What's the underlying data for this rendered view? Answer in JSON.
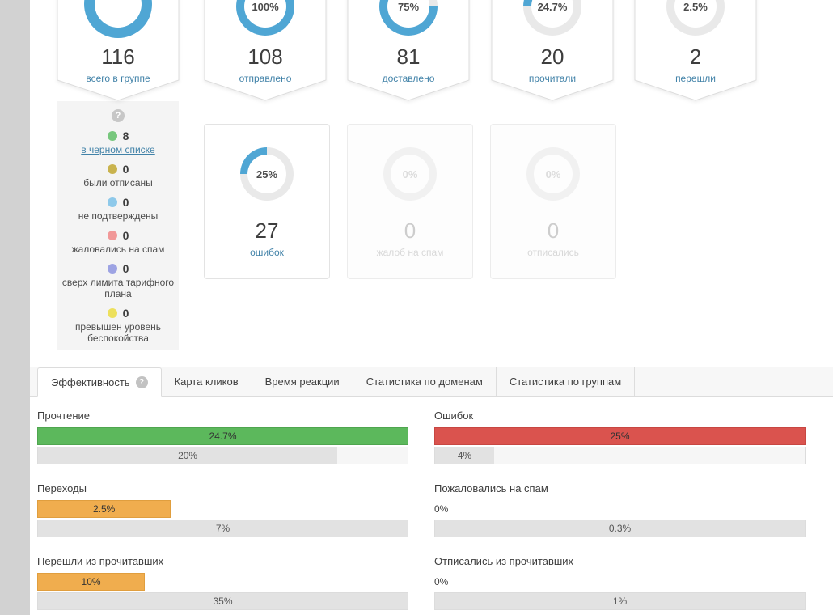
{
  "colors": {
    "accent_blue": "#4fa6d4",
    "link_blue": "#4182a8",
    "bar_green": "#5cb85c",
    "bar_orange": "#f0ad4e",
    "bar_red": "#da534e",
    "sidebar_gray": "#d2d2d2"
  },
  "icons": {
    "help": "?"
  },
  "summary_cards": [
    {
      "percent": "",
      "value": "116",
      "label": "всего в группе",
      "donut_pct": 100
    },
    {
      "percent": "100%",
      "value": "108",
      "label": "отправлено",
      "donut_pct": 100
    },
    {
      "percent": "75%",
      "value": "81",
      "label": "доставлено",
      "donut_pct": 75
    },
    {
      "percent": "24.7%",
      "value": "20",
      "label": "прочитали",
      "donut_pct": 24.7
    },
    {
      "percent": "2.5%",
      "value": "2",
      "label": "перешли",
      "donut_pct": 2.5
    }
  ],
  "blacklist_panel": {
    "items": [
      {
        "dot_color": "#77c77d",
        "value": "8",
        "label": "в черном списке",
        "is_link": true
      },
      {
        "dot_color": "#c9b34e",
        "value": "0",
        "label": "были отписаны"
      },
      {
        "dot_color": "#8ec9ea",
        "value": "0",
        "label": "не подтверждены"
      },
      {
        "dot_color": "#f19898",
        "value": "0",
        "label": "жаловались на спам"
      },
      {
        "dot_color": "#9da3e3",
        "value": "0",
        "label": "сверх лимита тарифного плана"
      },
      {
        "dot_color": "#ede05c",
        "value": "0",
        "label": "превышен уровень беспокойства"
      }
    ]
  },
  "detail_cards": [
    {
      "percent": "25%",
      "value": "27",
      "label": "ошибок",
      "donut_pct": 25,
      "active": true
    },
    {
      "percent": "0%",
      "value": "0",
      "label": "жалоб на спам",
      "donut_pct": 0,
      "active": false
    },
    {
      "percent": "0%",
      "value": "0",
      "label": "отписались",
      "donut_pct": 0,
      "active": false
    }
  ],
  "tabs": [
    {
      "label": "Эффективность",
      "active": true
    },
    {
      "label": "Карта кликов",
      "active": false
    },
    {
      "label": "Время реакции",
      "active": false
    },
    {
      "label": "Статистика по доменам",
      "active": false
    },
    {
      "label": "Статистика по группам",
      "active": false
    }
  ],
  "metrics": {
    "left": [
      {
        "title": "Прочтение",
        "value_label": "24.7%",
        "value_pct": 24.7,
        "value_width": 100,
        "color": "green",
        "avg_label": "20%",
        "avg_pct": 20,
        "avg_width": 81
      },
      {
        "title": "Переходы",
        "value_label": "2.5%",
        "value_pct": 2.5,
        "value_width": 36,
        "color": "orange",
        "avg_label": "7%",
        "avg_pct": 7,
        "avg_width": 100
      },
      {
        "title": "Перешли из прочитавших",
        "value_label": "10%",
        "value_pct": 10,
        "value_width": 29,
        "color": "orange",
        "avg_label": "35%",
        "avg_pct": 35,
        "avg_width": 100
      }
    ],
    "right": [
      {
        "title": "Ошибок",
        "value_label": "25%",
        "value_pct": 25,
        "value_width": 100,
        "color": "red",
        "avg_label": "4%",
        "avg_pct": 4,
        "avg_width": 16
      },
      {
        "title": "Пожаловались на спам",
        "value_label": "0%",
        "value_pct": 0,
        "value_width": 0,
        "color": "none",
        "avg_label": "0.3%",
        "avg_pct": 0.3,
        "avg_width": 100
      },
      {
        "title": "Отписались из прочитавших",
        "value_label": "0%",
        "value_pct": 0,
        "value_width": 0,
        "color": "none",
        "avg_label": "1%",
        "avg_pct": 1,
        "avg_width": 100
      }
    ]
  }
}
